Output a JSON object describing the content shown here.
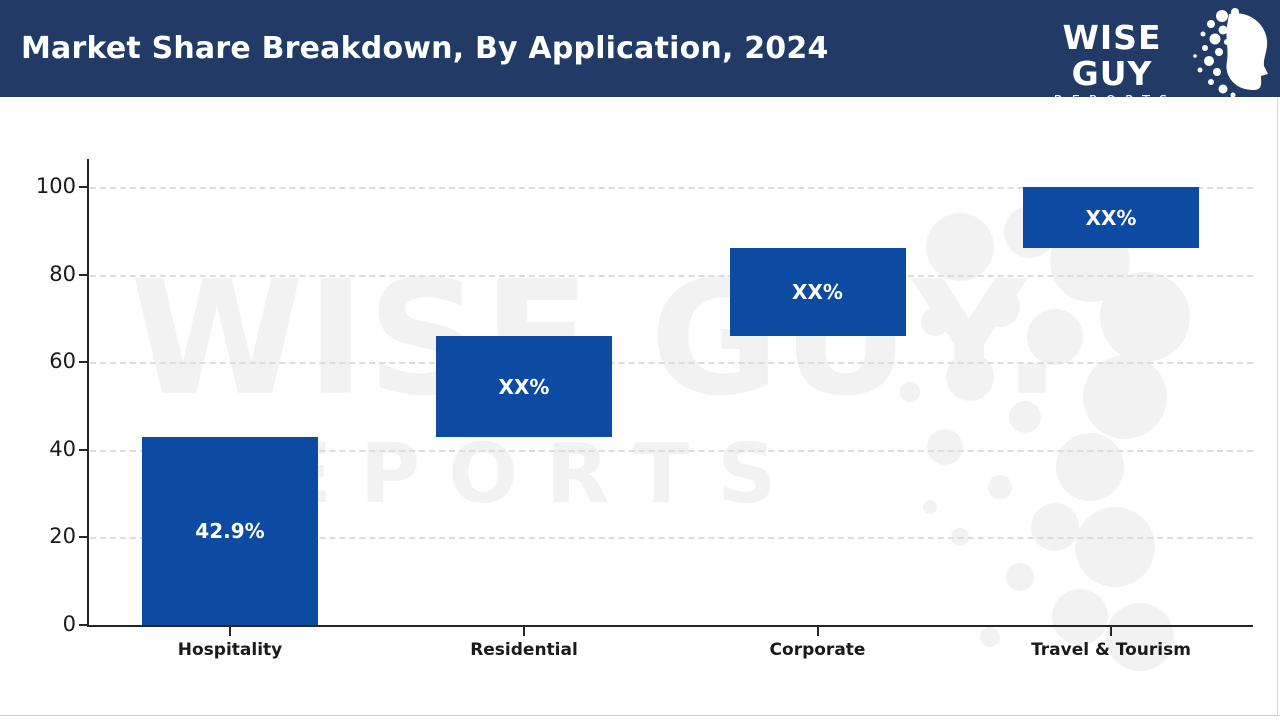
{
  "header": {
    "title": "Market Share Breakdown, By Application, 2024",
    "logo": {
      "line1": "WISE GUY",
      "line2": "REPORTS"
    }
  },
  "watermark": {
    "line1": "WISE GUY.",
    "line2": "REPORTS"
  },
  "colors": {
    "header_bg": "#223a66",
    "bar": "#0c4ba1",
    "bar_label": "#ffffff",
    "axis": "#262626",
    "gridline": "#dcdcdc",
    "tick_label": "#1a1a1a",
    "watermark": "#f2f2f2"
  },
  "chart_data": {
    "type": "bar",
    "subtype": "waterfall",
    "title": "Market Share Breakdown, By Application, 2024",
    "categories": [
      "Hospitality",
      "Residential",
      "Corporate",
      "Travel & Tourism"
    ],
    "segments": [
      {
        "category": "Hospitality",
        "start": 0,
        "end": 42.9,
        "label": "42.9%"
      },
      {
        "category": "Residential",
        "start": 42.9,
        "end": 65.9,
        "label": "XX%"
      },
      {
        "category": "Corporate",
        "start": 65.9,
        "end": 86.0,
        "label": "XX%"
      },
      {
        "category": "Travel & Tourism",
        "start": 86.0,
        "end": 100.0,
        "label": "XX%"
      }
    ],
    "xlabel": "",
    "ylabel": "",
    "ylim": [
      0,
      100
    ],
    "yticks": [
      0,
      20,
      40,
      60,
      80,
      100
    ],
    "grid": "horizontal-dashed",
    "legend": "none"
  }
}
